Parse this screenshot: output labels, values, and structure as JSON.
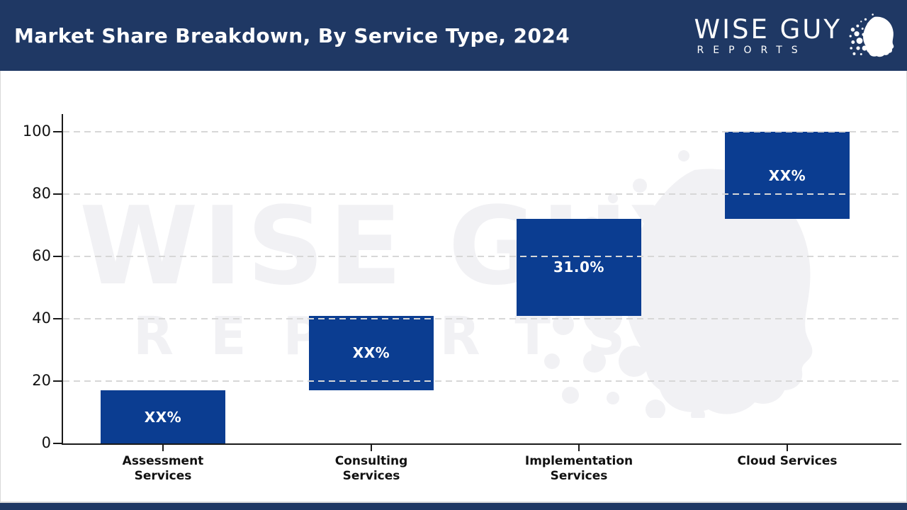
{
  "header": {
    "title": "Market Share Breakdown, By Service Type, 2024",
    "logo": {
      "line1": "WISE GUY",
      "line2": "REPORTS"
    }
  },
  "watermark": {
    "line1": "WISE GUY",
    "line2": "REPORTS"
  },
  "colors": {
    "header_bg": "#1f3864",
    "footer_bg": "#1f3864",
    "bar": "#0b3d91",
    "bar_label": "#ffffff",
    "gridline": "#d7d7d7",
    "watermark": "#f1f1f4"
  },
  "chart_data": {
    "type": "bar",
    "variant": "floating-waterfall",
    "title": "Market Share Breakdown, By Service Type, 2024",
    "categories": [
      "Assessment\nServices",
      "Consulting\nServices",
      "Implementation\nServices",
      "Cloud Services"
    ],
    "segments": [
      {
        "category": "Assessment\nServices",
        "start": 0,
        "end": 17,
        "label": "XX%"
      },
      {
        "category": "Consulting\nServices",
        "start": 17,
        "end": 41,
        "label": "XX%"
      },
      {
        "category": "Implementation\nServices",
        "start": 41,
        "end": 72,
        "label": "31.0%"
      },
      {
        "category": "Cloud Services",
        "start": 72,
        "end": 100,
        "label": "XX%"
      }
    ],
    "xlabel": "",
    "ylabel": "",
    "ylim": [
      0,
      105
    ],
    "yticks": [
      0,
      20,
      40,
      60,
      80,
      100
    ],
    "grid": "horizontal-dashed",
    "legend": "none"
  }
}
